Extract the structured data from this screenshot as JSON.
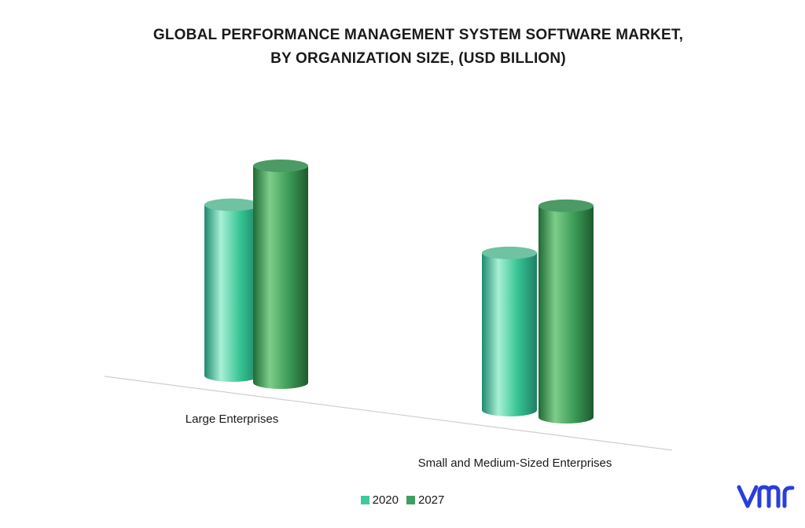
{
  "chart_data": {
    "type": "bar",
    "title_lines": [
      "GLOBAL PERFORMANCE MANAGEMENT SYSTEM SOFTWARE MARKET,",
      "BY ORGANIZATION SIZE, (USD BILLION)"
    ],
    "categories": [
      "Large Enterprises",
      "Small and Medium-Sized Enterprises"
    ],
    "series": [
      {
        "name": "2020",
        "values": [
          0.63,
          0.58
        ],
        "color": "#3fc99a"
      },
      {
        "name": "2027",
        "values": [
          0.8,
          0.78
        ],
        "color": "#3f9f5f"
      }
    ],
    "ylim": [
      0,
      1
    ],
    "grid": false,
    "legend_position": "bottom-center",
    "style": "3d-cylinder"
  },
  "logo": {
    "text": "vmr",
    "color": "#2a3fd8"
  }
}
